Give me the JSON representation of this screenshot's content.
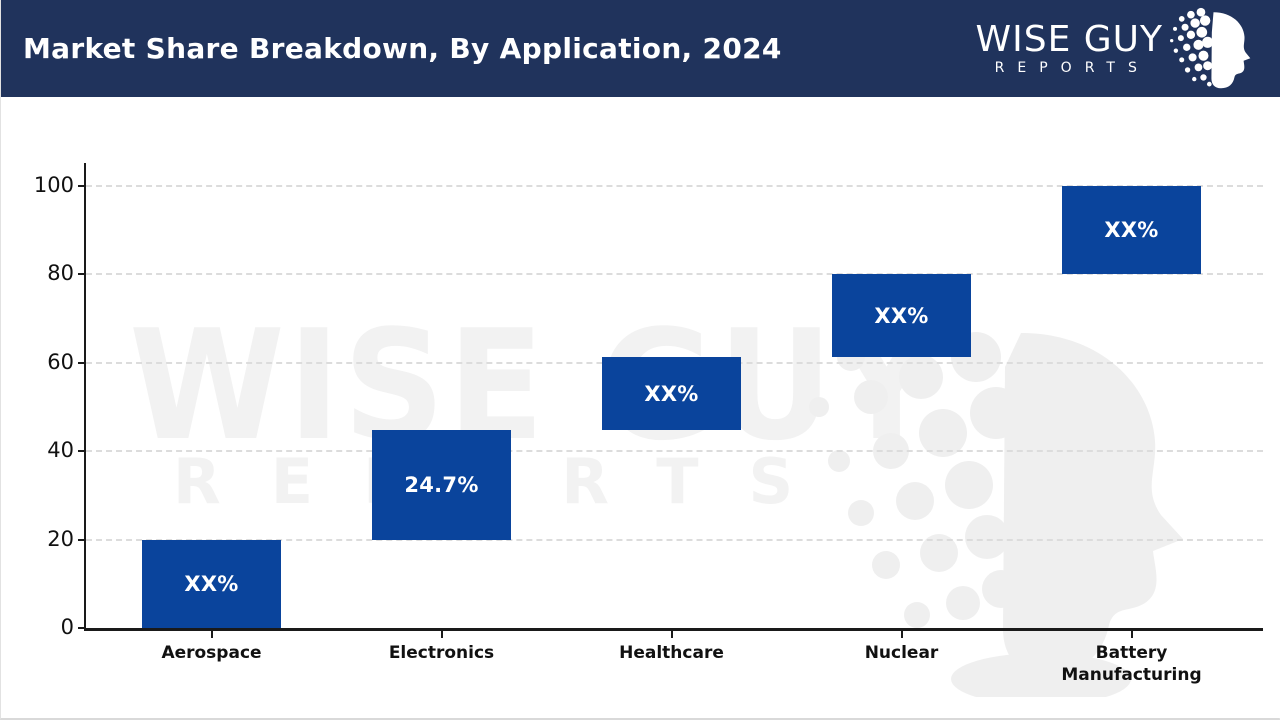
{
  "header": {
    "title": "Market Share Breakdown, By Application, 2024",
    "logo": {
      "line1": "WISE GUY",
      "line2": "REPORTS",
      "icon": "dotted-head-profile-icon"
    }
  },
  "watermark": {
    "line1": "WISE GUY",
    "line2": "REPORTS",
    "icon": "dotted-head-profile-watermark"
  },
  "colors": {
    "header_bg": "#20335C",
    "bar": "#0A449C",
    "bar_label": "#FFFFFF",
    "gridline": "#DCDCDC",
    "axis": "#1A1A1A",
    "watermark": "#F2F2F2"
  },
  "chart_data": {
    "type": "bar",
    "subtype": "waterfall",
    "title": "Market Share Breakdown, By Application, 2024",
    "xlabel": "",
    "ylabel": "",
    "categories": [
      "Aerospace",
      "Electronics",
      "Healthcare",
      "Nuclear",
      "Battery Manufacturing"
    ],
    "segments": [
      {
        "category": "Aerospace",
        "start": 0,
        "end": 20,
        "label": "XX%"
      },
      {
        "category": "Electronics",
        "start": 20,
        "end": 44.7,
        "label": "24.7%"
      },
      {
        "category": "Healthcare",
        "start": 44.7,
        "end": 61.2,
        "label": "XX%"
      },
      {
        "category": "Nuclear",
        "start": 61.2,
        "end": 80,
        "label": "XX%"
      },
      {
        "category": "Battery Manufacturing",
        "start": 80,
        "end": 100,
        "label": "XX%"
      }
    ],
    "y_ticks": [
      0,
      20,
      40,
      60,
      80,
      100
    ],
    "ylim": [
      0,
      105
    ],
    "grid": "horizontal-dashed",
    "legend": "none",
    "bar_value_labels_inside": true
  }
}
